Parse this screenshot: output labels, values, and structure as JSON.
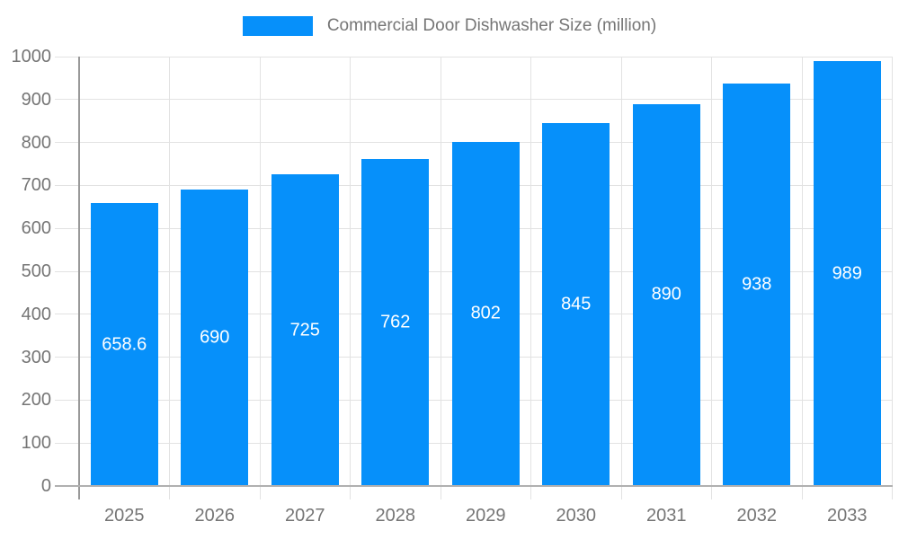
{
  "legend": {
    "label": "Commercial Door Dishwasher Size (million)"
  },
  "chart_data": {
    "type": "bar",
    "title": "Commercial Door Dishwasher Size (million)",
    "categories": [
      "2025",
      "2026",
      "2027",
      "2028",
      "2029",
      "2030",
      "2031",
      "2032",
      "2033"
    ],
    "values": [
      658.6,
      690,
      725,
      762,
      802,
      845,
      890,
      938,
      989
    ],
    "value_labels": [
      "658.6",
      "690",
      "725",
      "762",
      "802",
      "845",
      "890",
      "938",
      "989"
    ],
    "xlabel": "",
    "ylabel": "",
    "ylim": [
      0,
      1000
    ],
    "ytick_step": 100,
    "grid": true,
    "legend_position": "top-center",
    "value_label_position": "inside-center"
  },
  "colors": {
    "bar": "#0690fa",
    "bar_label": "#ffffff",
    "axis_text": "#757575",
    "grid_line": "#e2e2e2",
    "x_axis_line": "#b0b0b0",
    "y_axis_line": "#999999",
    "background": "#ffffff"
  }
}
